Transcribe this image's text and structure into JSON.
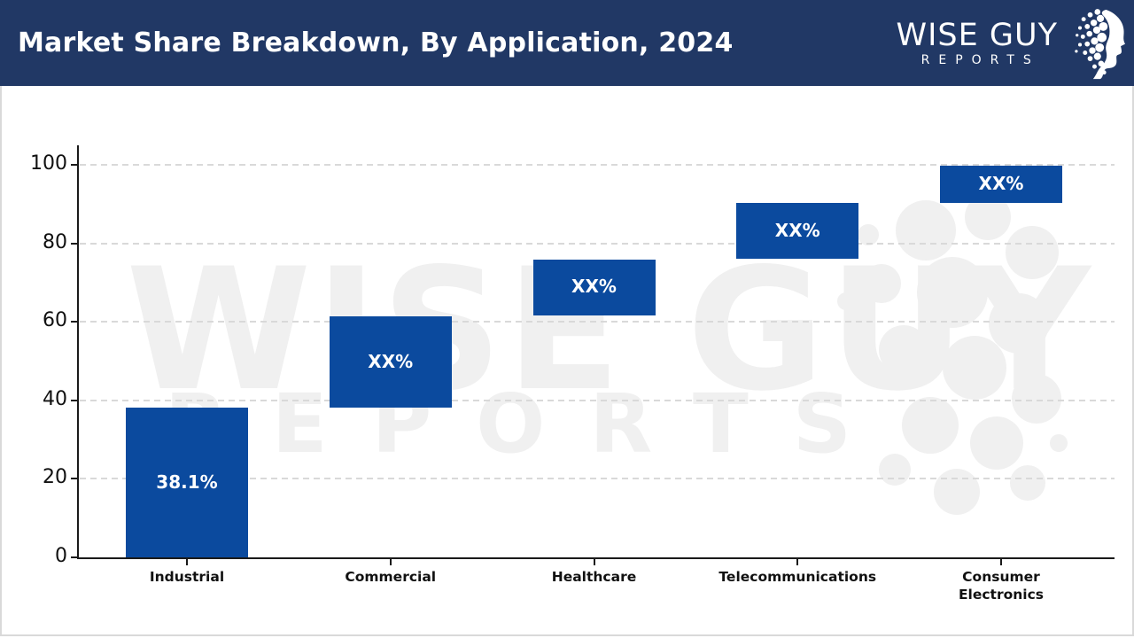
{
  "header": {
    "title": "Market Share Breakdown, By Application, 2024",
    "logo": {
      "wordmark": "WISE GUY",
      "subtext": "REPORTS"
    }
  },
  "watermark": {
    "line1": "WISE GUY",
    "line2": "REPORTS"
  },
  "colors": {
    "header_background": "#213865",
    "bar_fill": "#0b4a9e",
    "bar_label": "#ffffff",
    "gridline": "#d9d9d9",
    "axis": "#1a1a1a",
    "watermark": "#f0f0f0",
    "frame_border": "#d9d9d9"
  },
  "chart_data": {
    "type": "bar",
    "subtype": "waterfall",
    "title": "Market Share Breakdown, By Application, 2024",
    "xlabel": "",
    "ylabel": "",
    "ylim": [
      0,
      105
    ],
    "yticks": [
      0,
      20,
      40,
      60,
      80,
      100
    ],
    "grid": "horizontal dashed",
    "legend": "none",
    "categories": [
      "Industrial",
      "Commercial",
      "Healthcare",
      "Telecommunications",
      "Consumer Electronics"
    ],
    "bars": [
      {
        "category": "Industrial",
        "display": "Industrial",
        "base": 0,
        "top": 38.1,
        "label": "38.1%"
      },
      {
        "category": "Commercial",
        "display": "Commercial",
        "base": 38.1,
        "top": 61.4,
        "label": "XX%"
      },
      {
        "category": "Healthcare",
        "display": "Healthcare",
        "base": 61.6,
        "top": 75.9,
        "label": "XX%"
      },
      {
        "category": "Telecommunications",
        "display": "Telecommunications",
        "base": 76.1,
        "top": 90.2,
        "label": "XX%"
      },
      {
        "category": "Consumer Electronics",
        "display": "Consumer\nElectronics",
        "base": 90.4,
        "top": 99.7,
        "label": "XX%"
      }
    ]
  }
}
